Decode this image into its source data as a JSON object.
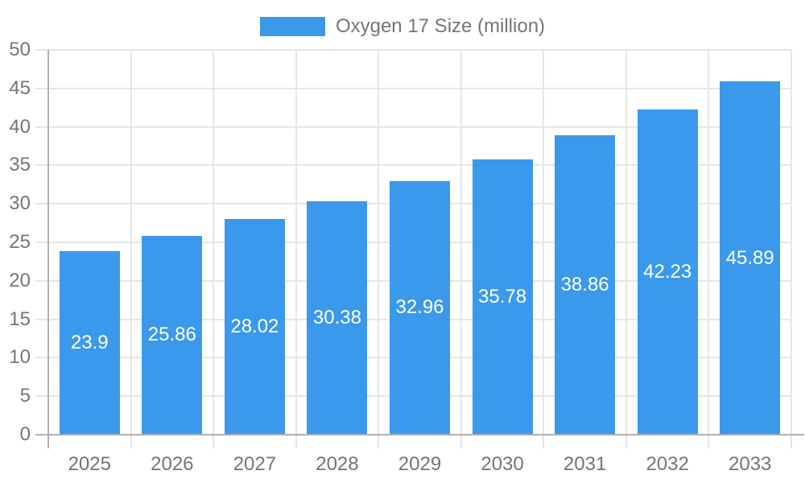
{
  "chart_data": {
    "type": "bar",
    "title": "",
    "categories": [
      "2025",
      "2026",
      "2027",
      "2028",
      "2029",
      "2030",
      "2031",
      "2032",
      "2033"
    ],
    "series": [
      {
        "name": "Oxygen 17 Size (million)",
        "values": [
          23.9,
          25.86,
          28.02,
          30.38,
          32.96,
          35.78,
          38.86,
          42.23,
          45.89
        ],
        "value_labels": [
          "23.9",
          "25.86",
          "28.02",
          "30.38",
          "32.96",
          "35.78",
          "38.86",
          "42.23",
          "45.89"
        ]
      }
    ],
    "xlabel": "",
    "ylabel": "",
    "ylim": [
      0,
      50
    ],
    "yticks": [
      0,
      5,
      10,
      15,
      20,
      25,
      30,
      35,
      40,
      45,
      50
    ],
    "grid": {
      "horizontal": true,
      "vertical": true
    },
    "legend": {
      "position": "top-center",
      "entries": [
        "Oxygen 17 Size (million)"
      ]
    },
    "value_label_position": "inside-center",
    "colors": {
      "bar": "#3b99ec",
      "value_label": "#ffffff",
      "axis_text": "#757575",
      "grid_line": "#e6e6e6",
      "axis_line": "#b0b0b0",
      "background": "#ffffff"
    }
  }
}
